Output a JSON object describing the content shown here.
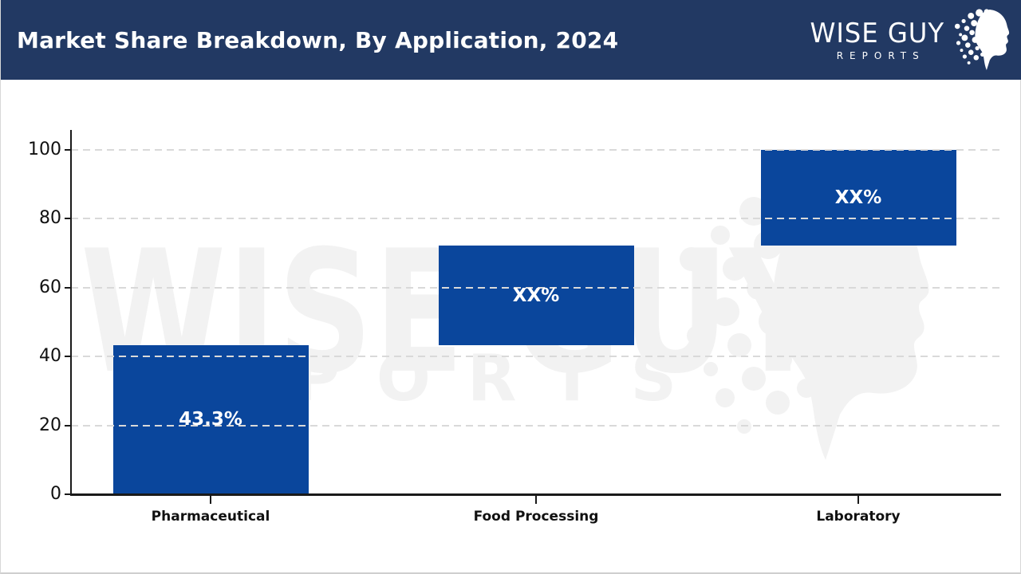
{
  "header": {
    "title": "Market Share Breakdown, By Application, 2024"
  },
  "logo": {
    "line1": "WISE GUY",
    "line2": "REPORTS",
    "face_icon": "dotted-face-profile"
  },
  "watermark": {
    "line1": "WISE GUY",
    "line2": "REPORTS",
    "face_icon": "dotted-face-profile"
  },
  "colors": {
    "header_bg": "#223963",
    "bar": "#0a469c",
    "grid": "#d9d9d9",
    "axis": "#1a1a1a",
    "watermark": "#f2f2f2",
    "bar_label": "#ffffff",
    "title_text": "#ffffff"
  },
  "chart_data": {
    "type": "bar",
    "subtype": "waterfall",
    "title": "Market Share Breakdown, By Application, 2024",
    "categories": [
      "Pharmaceutical",
      "Food Processing",
      "Laboratory"
    ],
    "bars": [
      {
        "category": "Pharmaceutical",
        "start": 0,
        "end": 43.3,
        "label": "43.3%"
      },
      {
        "category": "Food Processing",
        "start": 43.3,
        "end": 72.2,
        "label": "XX%"
      },
      {
        "category": "Laboratory",
        "start": 72.2,
        "end": 100,
        "label": "XX%"
      }
    ],
    "xlabel": "",
    "ylabel": "",
    "ylim": [
      0,
      100
    ],
    "yticks": [
      0,
      20,
      40,
      60,
      80,
      100
    ],
    "grid": "horizontal-dashed",
    "grid_above_bars": true,
    "legend": "none"
  }
}
